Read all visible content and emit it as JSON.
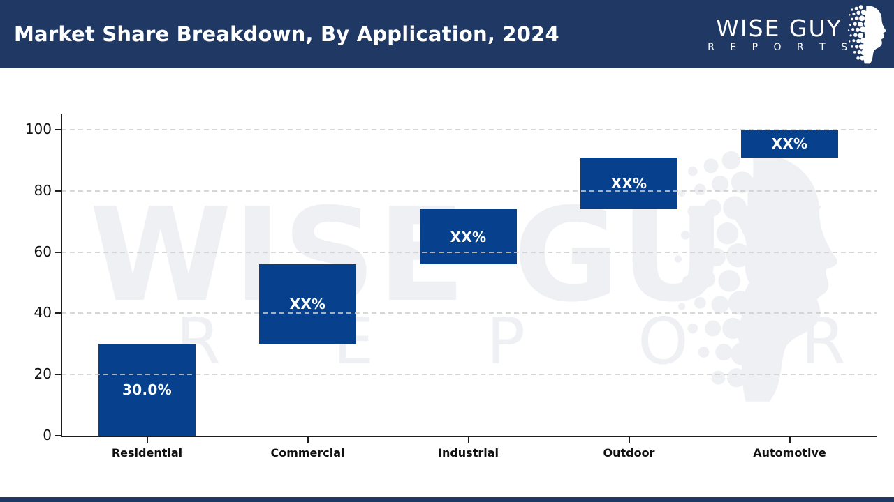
{
  "header": {
    "title": "Market Share Breakdown, By Application, 2024",
    "bg_color": "#1f3864",
    "text_color": "#ffffff",
    "logo": {
      "line1": "WISE GUY",
      "line2": "R E P O R T S"
    }
  },
  "watermark": {
    "line1": "WISE GUY",
    "line2": "R E P O R T S",
    "color": "#eff0f3"
  },
  "footer": {
    "bg_color": "#1f3864"
  },
  "chart_data": {
    "type": "bar",
    "variant": "floating-waterfall",
    "title": "Market Share Breakdown, By Application, 2024",
    "categories": [
      "Residential",
      "Commercial",
      "Industrial",
      "Outdoor",
      "Automotive"
    ],
    "series": [
      {
        "name": "Market share (%)",
        "segment_start": [
          0,
          30,
          56,
          74,
          91
        ],
        "segment_end": [
          30,
          56,
          74,
          91,
          100
        ],
        "values": [
          30,
          26,
          18,
          17,
          9
        ]
      }
    ],
    "bar_labels": [
      "30.0%",
      "XX%",
      "XX%",
      "XX%",
      "XX%"
    ],
    "xlabel": "",
    "ylabel": "",
    "ylim": [
      0,
      105
    ],
    "yticks": [
      0,
      20,
      40,
      60,
      80,
      100
    ],
    "grid": {
      "axis": "y",
      "style": "dashed",
      "color": "#d9d9d9",
      "over_bars": true
    },
    "legend": "none",
    "bar_color": "#07418d",
    "bar_label_color": "#ffffff",
    "axis_color": "#1c1c1c"
  }
}
